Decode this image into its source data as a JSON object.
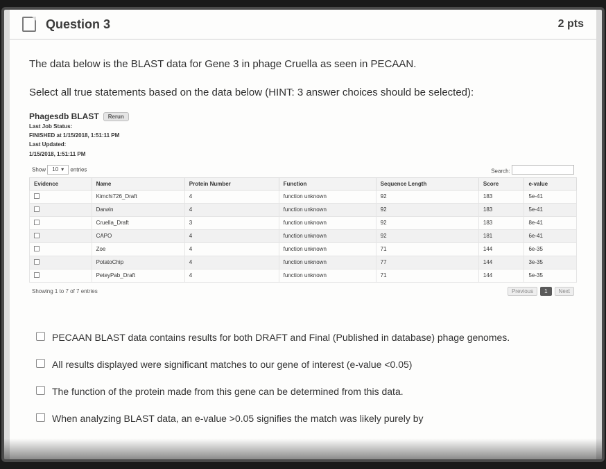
{
  "header": {
    "title": "Question 3",
    "points": "2 pts"
  },
  "prompt": {
    "line1": "The data below is the BLAST data for Gene 3 in phage Cruella as seen in PECAAN.",
    "line2": "Select all true statements based on the data below (HINT:  3 answer choices should be selected):"
  },
  "blast": {
    "title": "Phagesdb BLAST",
    "refresh": "Rerun",
    "meta1": "Last Job Status:",
    "meta2": "FINISHED at 1/15/2018, 1:51:11 PM",
    "meta3": "Last Updated:",
    "meta4": "1/15/2018, 1:51:11 PM",
    "show_label": "Show",
    "show_val": "10",
    "entries_label": "entries",
    "search_label": "Search:",
    "columns": [
      "Evidence",
      "Name",
      "Protein Number",
      "Function",
      "Sequence Length",
      "Score",
      "e-value"
    ],
    "rows": [
      [
        "",
        "Kimchi726_Draft",
        "4",
        "function unknown",
        "92",
        "183",
        "5e-41"
      ],
      [
        "",
        "Darwin",
        "4",
        "function unknown",
        "92",
        "183",
        "5e-41"
      ],
      [
        "",
        "Cruella_Draft",
        "3",
        "function unknown",
        "92",
        "183",
        "8e-41"
      ],
      [
        "",
        "CAPO",
        "4",
        "function unknown",
        "92",
        "181",
        "6e-41"
      ],
      [
        "",
        "Zoe",
        "4",
        "function unknown",
        "71",
        "144",
        "6e-35"
      ],
      [
        "",
        "PotatoChip",
        "4",
        "function unknown",
        "77",
        "144",
        "3e-35"
      ],
      [
        "",
        "PeteyPab_Draft",
        "4",
        "function unknown",
        "71",
        "144",
        "5e-35"
      ]
    ],
    "footer_text": "Showing 1 to 7 of 7 entries",
    "prev": "Previous",
    "page1": "1",
    "next": "Next"
  },
  "answers": {
    "a": "PECAAN BLAST data contains results for both DRAFT and Final (Published in database) phage genomes.",
    "b": "All results displayed were significant matches to our gene of interest (e-value <0.05)",
    "c": "The function of the protein made from this gene can be determined from this data.",
    "d": "When analyzing BLAST data, an e-value >0.05 signifies the match was likely purely by"
  }
}
